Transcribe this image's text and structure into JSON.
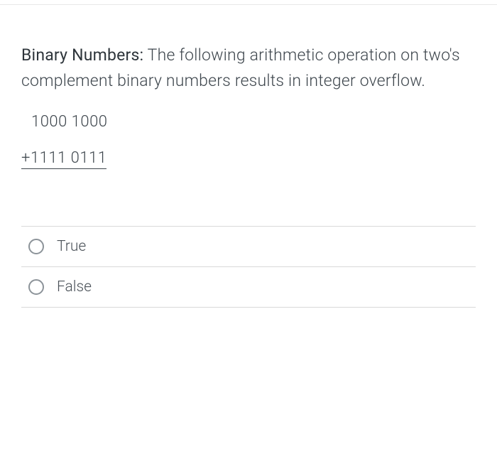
{
  "question": {
    "title": "Binary Numbers:",
    "body": "  The following arithmetic operation on two's complement binary numbers results in integer overflow.",
    "operand1": "1000 1000",
    "operand2_prefix": "+",
    "operand2": "1111 0111"
  },
  "options": [
    {
      "label": "True",
      "selected": false
    },
    {
      "label": "False",
      "selected": false
    }
  ],
  "colors": {
    "text": "#3d454c",
    "divider": "#d9d9d9",
    "radio_border": "#8c9399",
    "background": "#ffffff"
  }
}
